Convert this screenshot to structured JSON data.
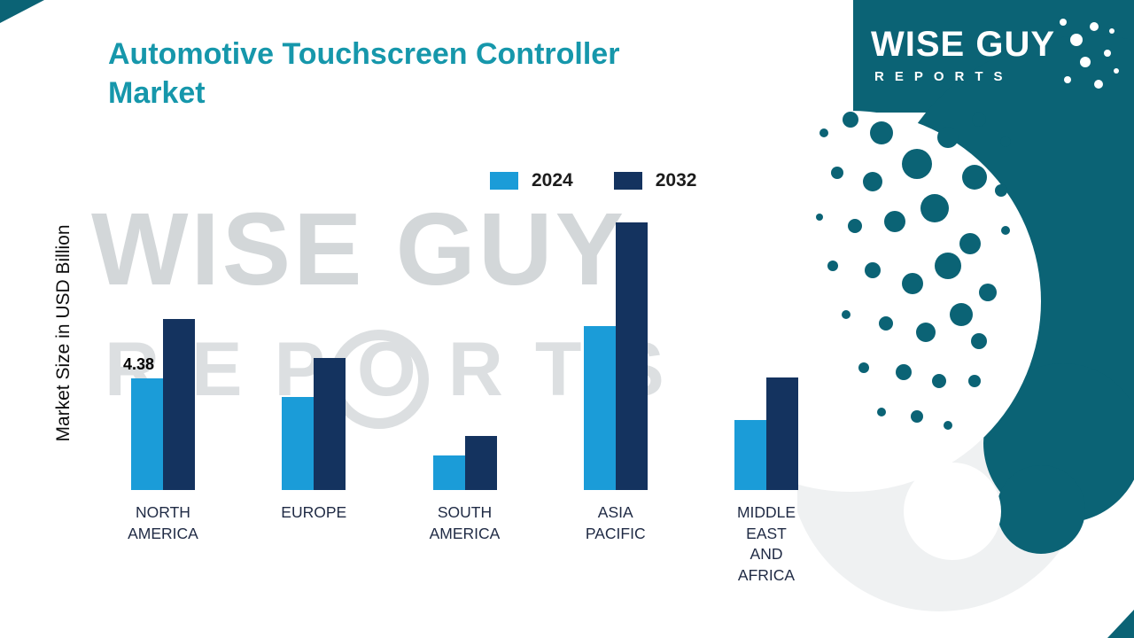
{
  "page": {
    "title": "Automotive Touchscreen Controller Market"
  },
  "brand": {
    "name_top": "WISE GUY",
    "name_bottom": "REPORTS"
  },
  "watermark": {
    "line1": "WISE GUY",
    "line2": "REPORTS"
  },
  "chart_data": {
    "type": "bar",
    "title": "Automotive Touchscreen Controller Market",
    "ylabel": "Market Size in USD Billion",
    "unit": "USD Billion",
    "categories": [
      "NORTH AMERICA",
      "EUROPE",
      "SOUTH AMERICA",
      "ASIA PACIFIC",
      "MIDDLE EAST AND AFRICA"
    ],
    "category_lines": [
      [
        "NORTH",
        "AMERICA"
      ],
      [
        "EUROPE"
      ],
      [
        "SOUTH",
        "AMERICA"
      ],
      [
        "ASIA",
        "PACIFIC"
      ],
      [
        "MIDDLE",
        "EAST",
        "AND",
        "AFRICA"
      ]
    ],
    "series": [
      {
        "name": "2024",
        "color": "#1b9cd8",
        "values": [
          4.38,
          3.65,
          1.35,
          6.4,
          2.75
        ]
      },
      {
        "name": "2032",
        "color": "#14335f",
        "values": [
          6.7,
          5.15,
          2.1,
          10.45,
          4.4
        ]
      }
    ],
    "data_labels": [
      {
        "series": "2024",
        "category_index": 0,
        "text": "4.38"
      }
    ],
    "ylim": [
      0,
      10.5
    ],
    "grid": false,
    "legend_position": "top-center"
  },
  "colors": {
    "accent_teal": "#1697ab",
    "brand_panel": "#0b6375",
    "bar_2024": "#1b9cd8",
    "bar_2032": "#14335f",
    "watermark": "#d7dadc"
  }
}
